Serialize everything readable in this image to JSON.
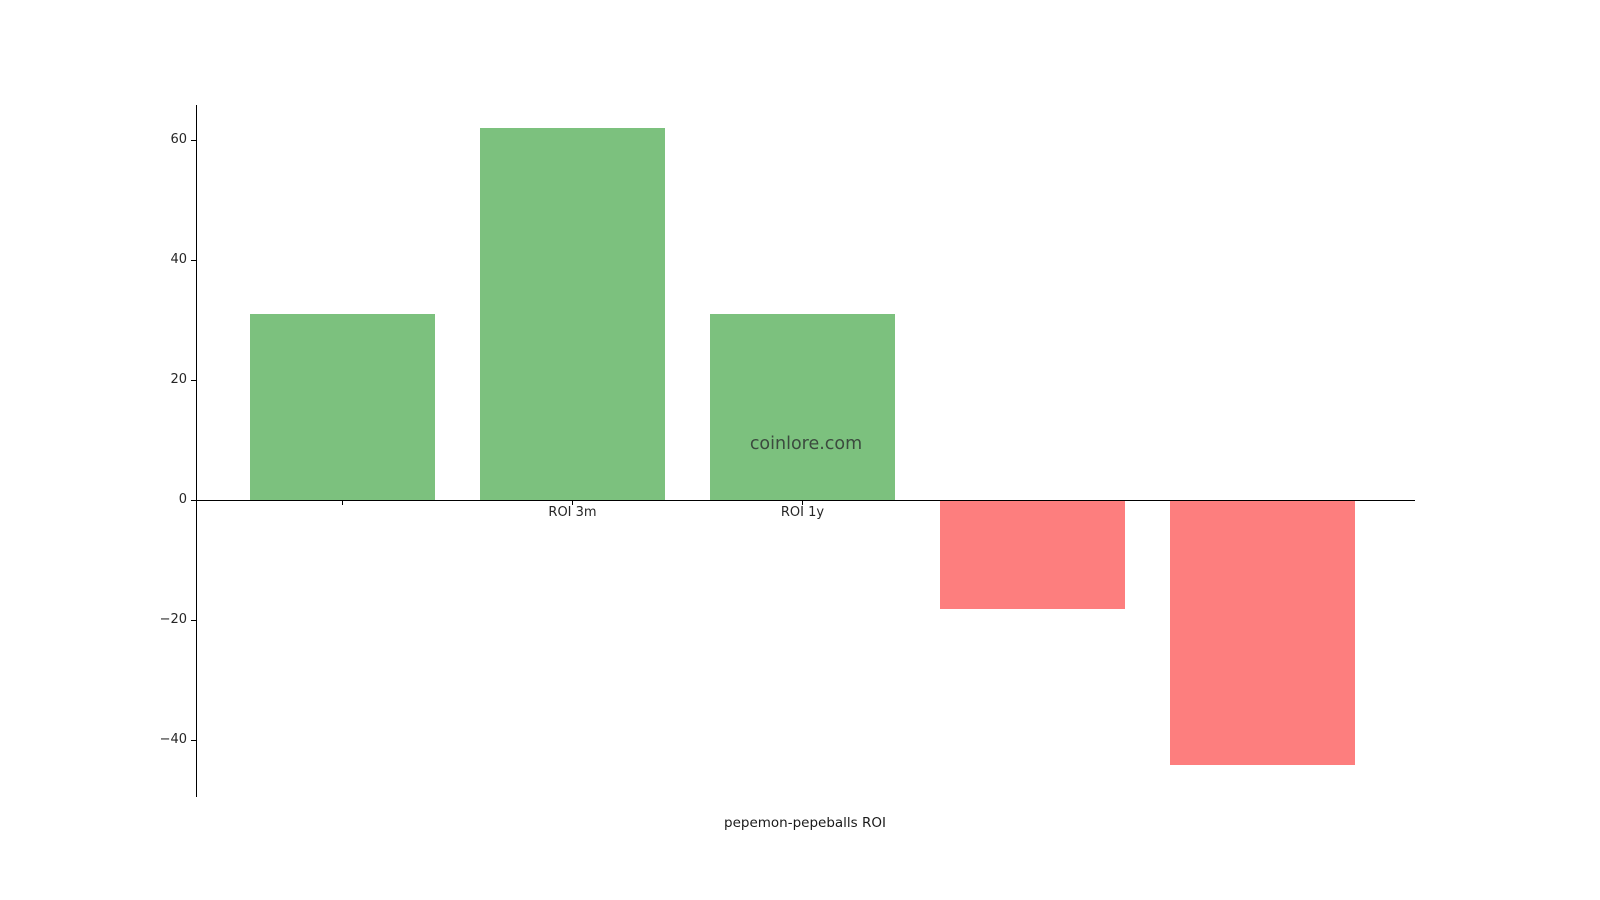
{
  "chart_data": {
    "type": "bar",
    "title": "pepemon-pepeballs ROI",
    "watermark": "coinlore.com",
    "categories": [
      "",
      "ROI 3m",
      "ROI 1y",
      "",
      ""
    ],
    "values": [
      31,
      62,
      31,
      -18,
      -44
    ],
    "bar_colors": [
      "#7cc17e",
      "#7cc17e",
      "#7cc17e",
      "#fd7e7e",
      "#fd7e7e"
    ],
    "yticks": [
      {
        "label": "60",
        "value": 60
      },
      {
        "label": "40",
        "value": 40
      },
      {
        "label": "20",
        "value": 20
      },
      {
        "label": "0",
        "value": 0
      },
      {
        "label": "−20",
        "value": -20
      },
      {
        "label": "−40",
        "value": -40
      }
    ],
    "xlabel": "",
    "ylabel": "",
    "ylim": [
      -49.5,
      66
    ],
    "grid": false,
    "legend": "none",
    "colors": {
      "positive": "#7cc17e",
      "negative": "#fd7e7e",
      "axis": "#000000",
      "tick_text": "#262626",
      "watermark_text": "#3b4a3e",
      "background": "#ffffff"
    }
  }
}
